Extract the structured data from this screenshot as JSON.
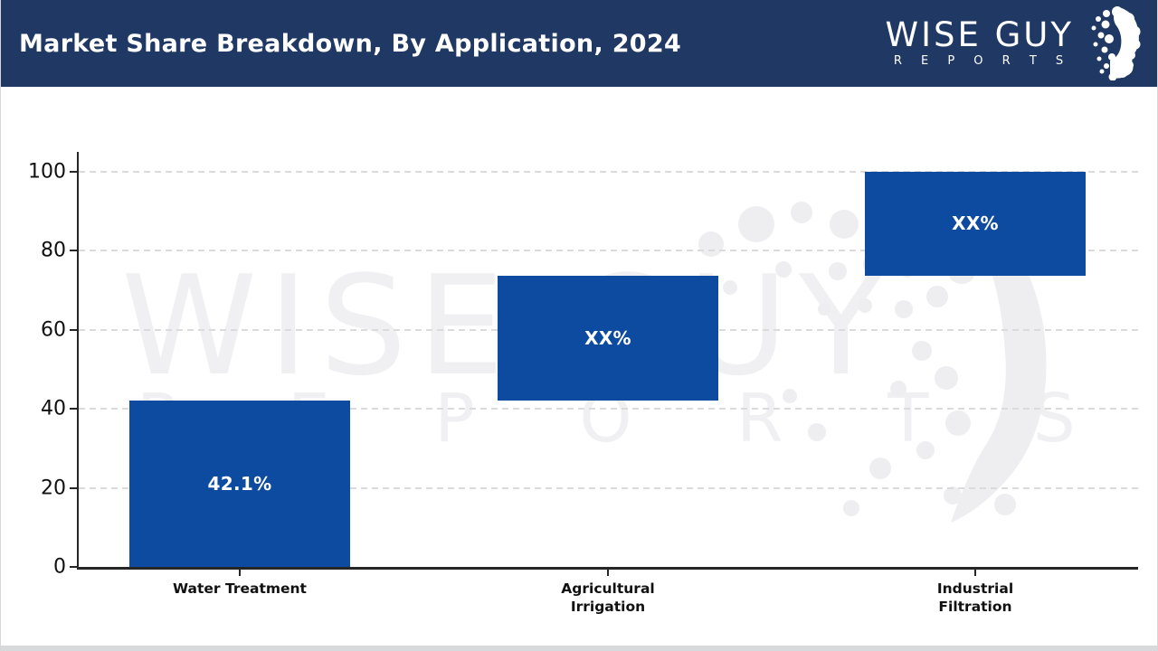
{
  "header": {
    "title": "Market Share Breakdown, By Application, 2024",
    "bg_color": "#1F3864",
    "logo": {
      "line1": "WISE GUY",
      "line2": "R E P O R T S"
    }
  },
  "watermark": {
    "line1": "WISE GUY",
    "line2": "R E P O R T S"
  },
  "chart_data": {
    "type": "bar",
    "variant": "waterfall",
    "title": "Market Share Breakdown, By Application, 2024",
    "categories": [
      "Water Treatment",
      "Agricultural\nIrrigation",
      "Industrial\nFiltration"
    ],
    "segments": [
      {
        "category": "Water Treatment",
        "start": 0,
        "end": 42.1,
        "label": "42.1%"
      },
      {
        "category": "Agricultural Irrigation",
        "start": 42.1,
        "end": 73.7,
        "label": "XX%"
      },
      {
        "category": "Industrial Filtration",
        "start": 73.7,
        "end": 100,
        "label": "XX%"
      }
    ],
    "values_visible": [
      "42.1%",
      "XX%",
      "XX%"
    ],
    "ylim": [
      0,
      100
    ],
    "yticks": [
      0,
      20,
      40,
      60,
      80,
      100
    ],
    "grid": "horizontal dashed",
    "legend": false,
    "bar_color": "#0D4BA0",
    "axis_color": "#262626",
    "grid_color": "#DBDBDB"
  },
  "colors": {
    "header_bg": "#1F3864",
    "bar_blue": "#0D4BA0",
    "watermark_gray": "#F0F0F2",
    "footer_gray": "#D8D9DA"
  }
}
